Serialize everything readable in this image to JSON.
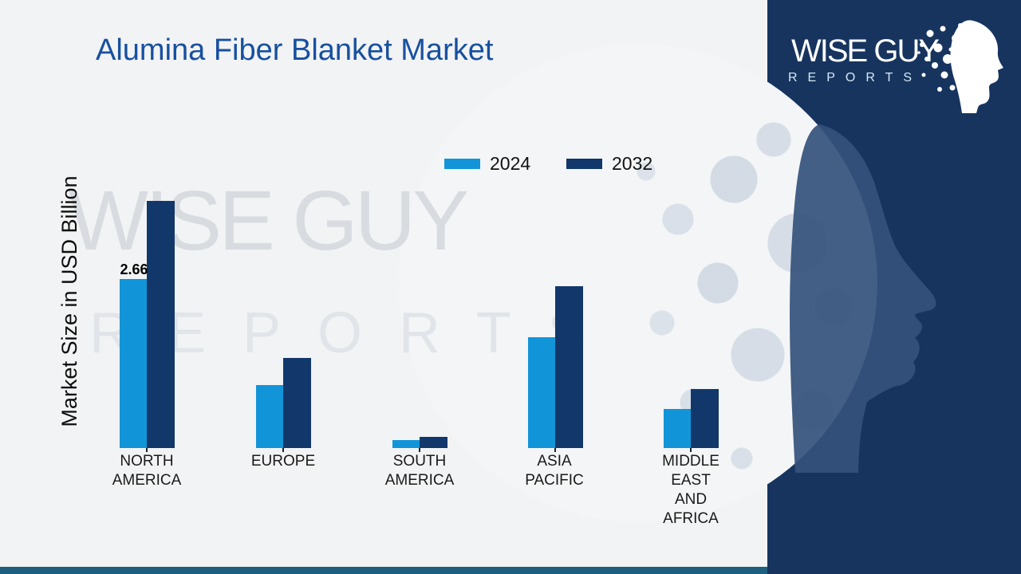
{
  "title": "Alumina Fiber Blanket Market",
  "logo": {
    "line1": "WISE GUY",
    "line2": "REPORTS"
  },
  "watermark": {
    "line1": "WISE GUY",
    "line2": "REPORTS"
  },
  "chart_data": {
    "type": "bar",
    "title": "Alumina Fiber Blanket Market",
    "ylabel": "Market Size in USD Billion",
    "xlabel": "",
    "categories": [
      "NORTH\nAMERICA",
      "EUROPE",
      "SOUTH\nAMERICA",
      "ASIA\nPACIFIC",
      "MIDDLE\nEAST\nAND\nAFRICA"
    ],
    "series": [
      {
        "name": "2024",
        "color": "#1295d8",
        "values": [
          2.66,
          0.99,
          0.13,
          1.74,
          0.61
        ]
      },
      {
        "name": "2032",
        "color": "#12386b",
        "values": [
          3.89,
          1.42,
          0.18,
          2.55,
          0.93
        ]
      }
    ],
    "annotations": [
      {
        "series": "2024",
        "category": "NORTH AMERICA",
        "text": "2.66"
      }
    ],
    "ylim": [
      0,
      4.2
    ],
    "grid": false,
    "legend_position": "top-center"
  },
  "theme": {
    "title_blue": "#1750a0",
    "panel_navy": "#16345e",
    "teal": "#1d5f7d",
    "face_blue": "#35517c",
    "watermark_gray": "#d8dbe0",
    "bar_2024": "#1295d8",
    "bar_2032": "#12386b"
  }
}
